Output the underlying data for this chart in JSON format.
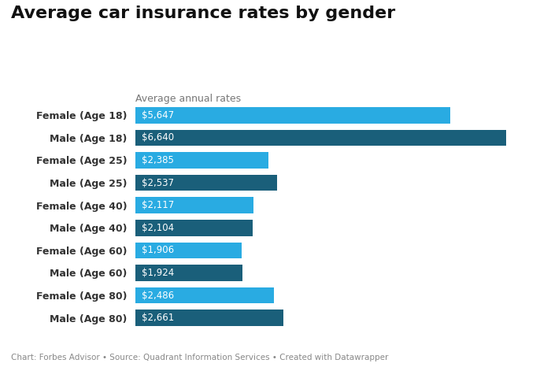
{
  "title": "Average car insurance rates by gender",
  "subtitle": "Average annual rates",
  "footer": "Chart: Forbes Advisor • Source: Quadrant Information Services • Created with Datawrapper",
  "categories": [
    "Female (Age 18)",
    "Male (Age 18)",
    "Female (Age 25)",
    "Male (Age 25)",
    "Female (Age 40)",
    "Male (Age 40)",
    "Female (Age 60)",
    "Male (Age 60)",
    "Female (Age 80)",
    "Male (Age 80)"
  ],
  "values": [
    5647,
    6640,
    2385,
    2537,
    2117,
    2104,
    1906,
    1924,
    2486,
    2661
  ],
  "bar_labels": [
    "$5,647",
    "$6,640",
    "$2,385",
    "$2,537",
    "$2,117",
    "$2,104",
    "$1,906",
    "$1,924",
    "$2,486",
    "$2,661"
  ],
  "colors": [
    "#29abe2",
    "#1a5f7a",
    "#29abe2",
    "#1a5f7a",
    "#29abe2",
    "#1a5f7a",
    "#29abe2",
    "#1a5f7a",
    "#29abe2",
    "#1a5f7a"
  ],
  "background_color": "#ffffff",
  "bar_text_color": "#ffffff",
  "title_fontsize": 16,
  "subtitle_fontsize": 9,
  "ytick_fontsize": 9,
  "bar_label_fontsize": 8.5,
  "footer_fontsize": 7.5,
  "xlim": [
    0,
    7200
  ],
  "bar_height": 0.72
}
